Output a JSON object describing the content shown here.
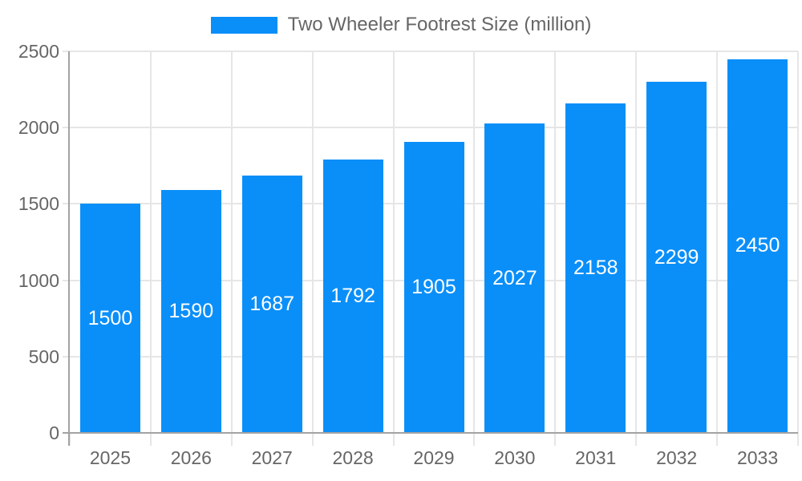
{
  "legend": {
    "label": "Two Wheeler Footrest Size (million)"
  },
  "colors": {
    "bar": "#0a8ff9",
    "grid": "#e6e6e6",
    "axis": "#a3a3a3",
    "tick_label": "#666666",
    "value_label": "#ffffff",
    "background": "#ffffff"
  },
  "chart_data": {
    "type": "bar",
    "title": "Two Wheeler Footrest Size (million)",
    "categories": [
      "2025",
      "2026",
      "2027",
      "2028",
      "2029",
      "2030",
      "2031",
      "2032",
      "2033"
    ],
    "values": [
      1500,
      1590,
      1687,
      1792,
      1905,
      2027,
      2158,
      2299,
      2450
    ],
    "xlabel": "",
    "ylabel": "",
    "ylim": [
      0,
      2500
    ],
    "yticks": [
      0,
      500,
      1000,
      1500,
      2000,
      2500
    ],
    "grid": true,
    "legend_position": "top",
    "value_label_position": "inside-center"
  }
}
